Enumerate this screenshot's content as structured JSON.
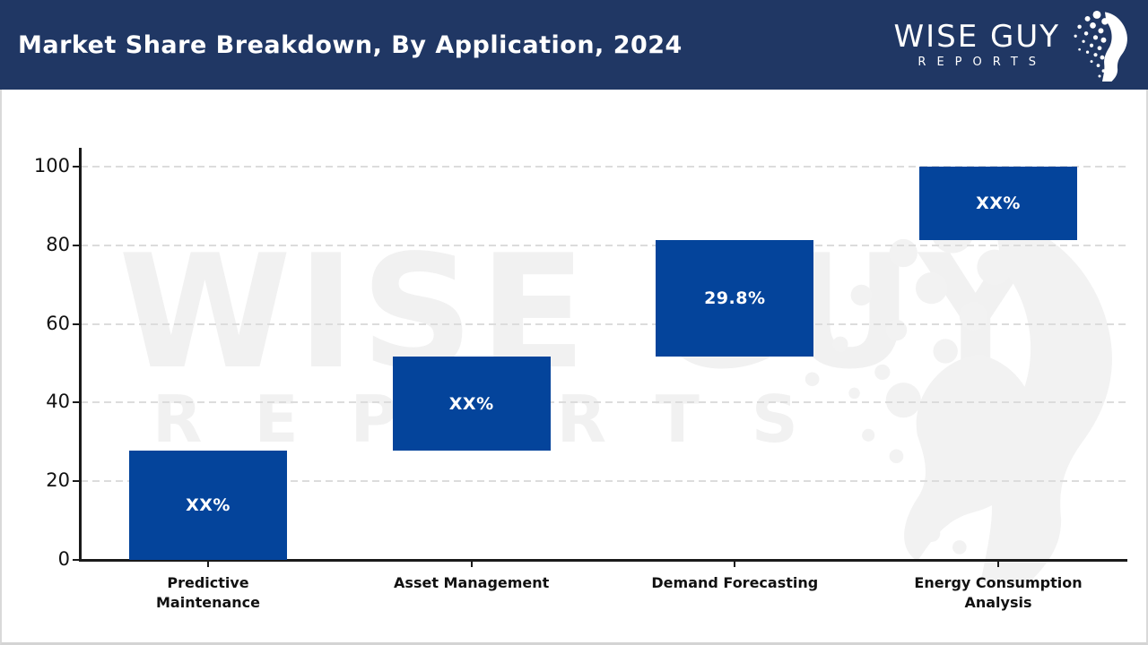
{
  "header": {
    "title": "Market Share Breakdown, By Application, 2024",
    "logo_line1": "WISE GUY",
    "logo_line2": "REPORTS",
    "bg_color": "#203764"
  },
  "watermark": {
    "line1": "WISE GUY",
    "line2": "REPORTS"
  },
  "chart_data": {
    "type": "bar",
    "subtype": "waterfall",
    "title": "Market Share Breakdown, By Application, 2024",
    "categories": [
      "Predictive Maintenance",
      "Asset Management",
      "Demand Forecasting",
      "Energy Consumption Analysis"
    ],
    "segments": [
      {
        "category": "Predictive Maintenance",
        "start": 0,
        "end": 27.8,
        "label": "XX%"
      },
      {
        "category": "Asset Management",
        "start": 27.7,
        "end": 51.7,
        "label": "XX%"
      },
      {
        "category": "Demand Forecasting",
        "start": 51.6,
        "end": 81.4,
        "label": "29.8%"
      },
      {
        "category": "Energy Consumption Analysis",
        "start": 81.4,
        "end": 99.9,
        "label": "XX%"
      }
    ],
    "yticks": [
      0,
      20,
      40,
      60,
      80,
      100
    ],
    "ylim": [
      0,
      105
    ],
    "xlabel": "",
    "ylabel": "",
    "grid": true,
    "grid_style": "dashed",
    "legend": null,
    "bar_color": "#04449b",
    "bar_label_color": "#ffffff",
    "axis_color": "#1a1a1a"
  }
}
